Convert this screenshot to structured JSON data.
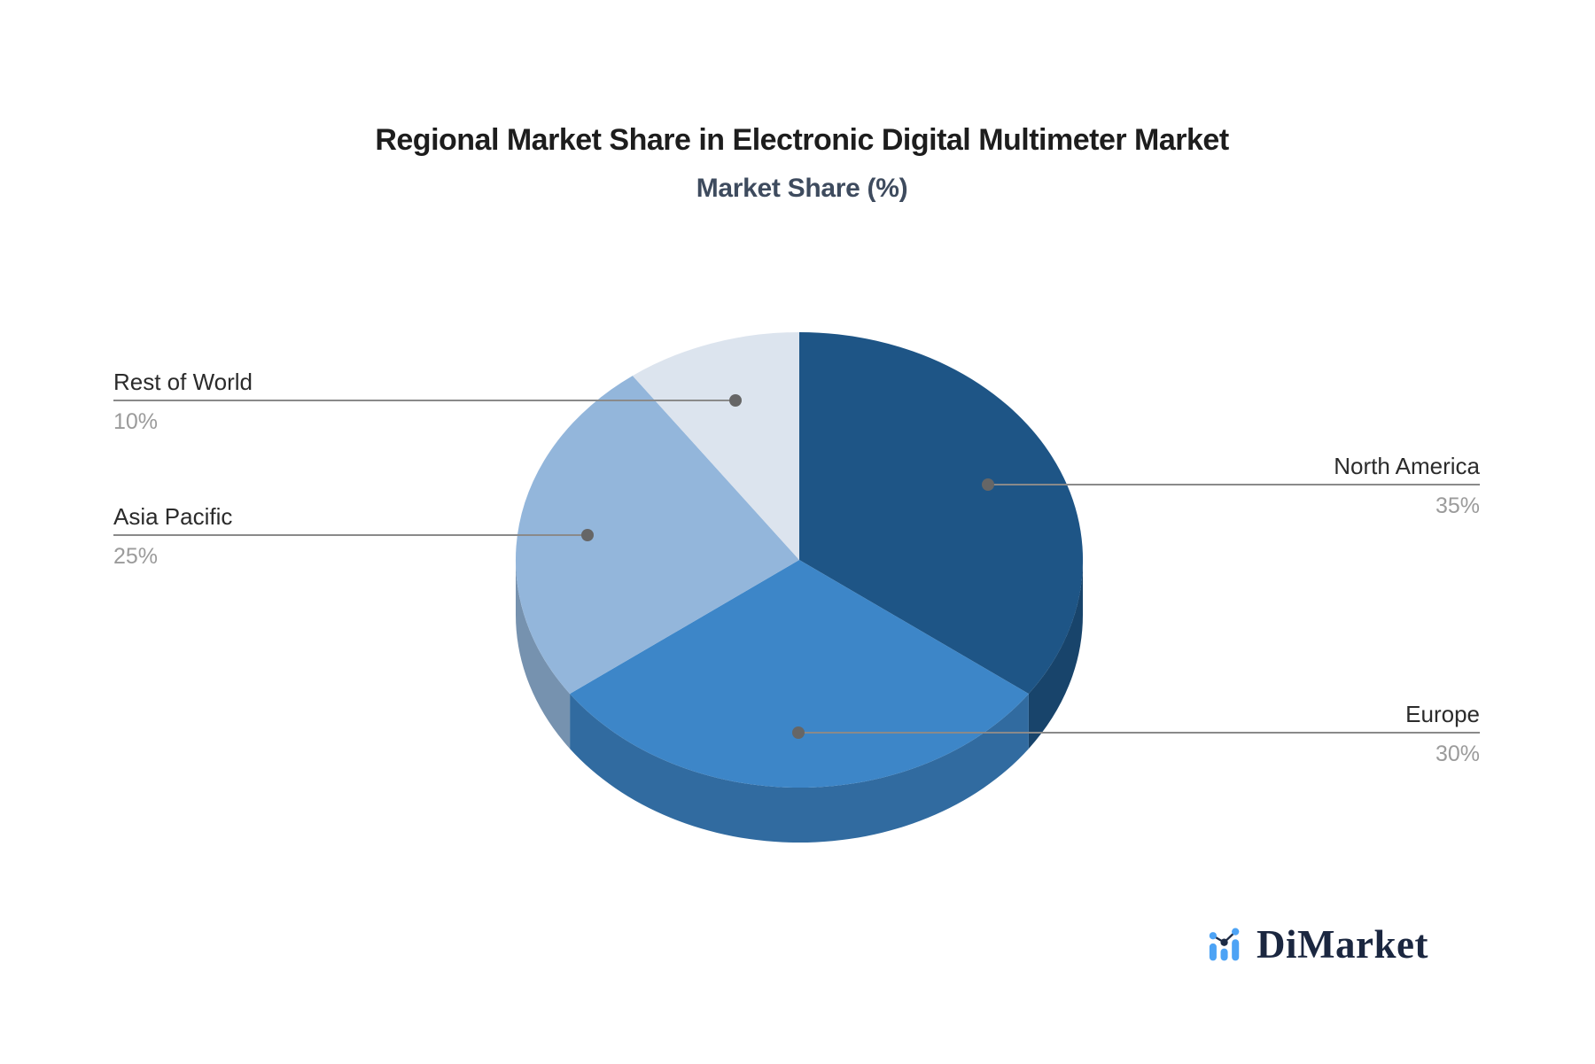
{
  "header": {
    "title": "Regional Market Share in Electronic Digital Multimeter Market",
    "subtitle": "Market Share (%)"
  },
  "chart_data": {
    "type": "pie",
    "style": "3d",
    "title": "Regional Market Share in Electronic Digital Multimeter Market",
    "subtitle": "Market Share (%)",
    "unit": "%",
    "start_angle_deg": 0,
    "direction": "clockwise",
    "labels_style": "callout-lines",
    "slices": [
      {
        "label": "North America",
        "value": 35,
        "display": "35%",
        "color": "#1e5586"
      },
      {
        "label": "Europe",
        "value": 30,
        "display": "30%",
        "color": "#3d86c8"
      },
      {
        "label": "Asia Pacific",
        "value": 25,
        "display": "25%",
        "color": "#93b6db"
      },
      {
        "label": "Rest of World",
        "value": 10,
        "display": "10%",
        "color": "#dce4ee"
      }
    ]
  },
  "branding": {
    "logo_text": "DiMarket"
  }
}
